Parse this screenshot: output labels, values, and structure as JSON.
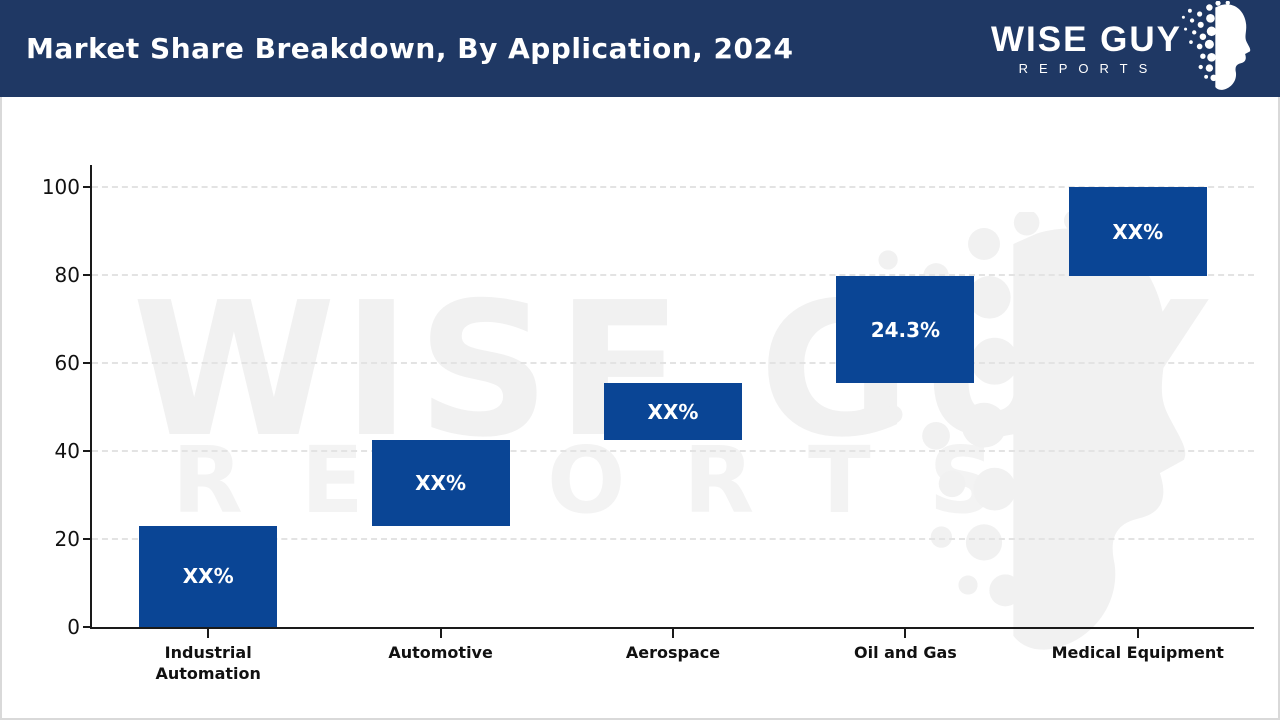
{
  "header": {
    "title": "Market Share Breakdown, By Application, 2024",
    "logo": {
      "line1": "WISE GUY",
      "line2": "REPORTS"
    }
  },
  "watermark": {
    "line1": "WISE GUY",
    "line2": "REPORTS"
  },
  "colors": {
    "header_bg": "#1f3864",
    "bar": "#0a4595",
    "grid": "#e3e3e3",
    "axis": "#1a1a1a",
    "watermark": "#f1f1f1",
    "title_text": "#ffffff",
    "bar_label_text": "#ffffff"
  },
  "chart_data": {
    "type": "bar",
    "variant": "waterfall",
    "title": "Market Share Breakdown, By Application, 2024",
    "categories": [
      "Industrial\nAutomation",
      "Automotive",
      "Aerospace",
      "Oil and Gas",
      "Medical Equipment"
    ],
    "bars": [
      {
        "category": "Industrial Automation",
        "start": 0,
        "end": 23,
        "label": "XX%"
      },
      {
        "category": "Automotive",
        "start": 23,
        "end": 42.5,
        "label": "XX%"
      },
      {
        "category": "Aerospace",
        "start": 42.5,
        "end": 55.4,
        "label": "XX%"
      },
      {
        "category": "Oil and Gas",
        "start": 55.4,
        "end": 79.7,
        "label": "24.3%"
      },
      {
        "category": "Medical Equipment",
        "start": 79.7,
        "end": 100,
        "label": "XX%"
      }
    ],
    "ylim": [
      0,
      100
    ],
    "yticks": [
      0,
      20,
      40,
      60,
      80,
      100
    ],
    "xlabel": "",
    "ylabel": "",
    "grid": "horizontal-dashed",
    "legend": "none"
  }
}
